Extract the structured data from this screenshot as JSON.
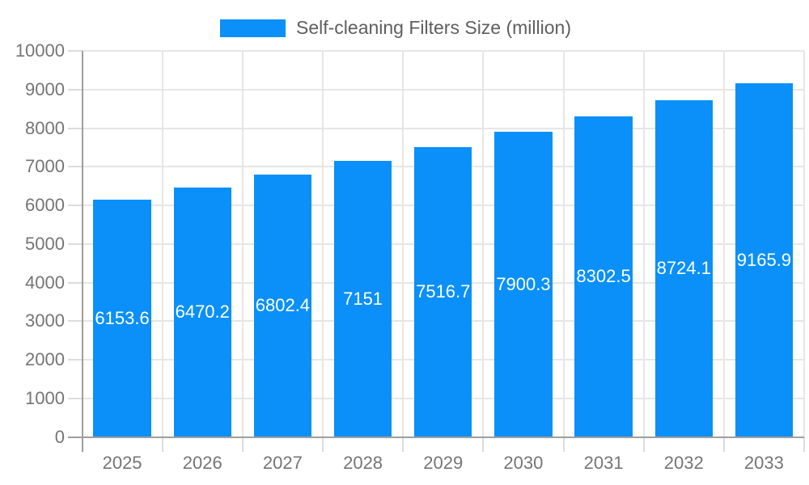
{
  "chart_data": {
    "type": "bar",
    "title": "Self-cleaning Filters Size (million)",
    "categories": [
      "2025",
      "2026",
      "2027",
      "2028",
      "2029",
      "2030",
      "2031",
      "2032",
      "2033"
    ],
    "values": [
      6153.6,
      6470.2,
      6802.4,
      7151,
      7516.7,
      7900.3,
      8302.5,
      8724.1,
      9165.9
    ],
    "xlabel": "",
    "ylabel": "",
    "ylim": [
      0,
      10000
    ],
    "yticks": [
      0,
      1000,
      2000,
      3000,
      4000,
      5000,
      6000,
      7000,
      8000,
      9000,
      10000
    ],
    "grid": true,
    "legend_position": "top-center",
    "value_label_position": "inside-middle",
    "colors": {
      "bar": "#0a90f8",
      "grid": "#e6e6e6",
      "axis": "#9e9e9e",
      "tick": "#dcdcdc",
      "axis_label": "#757575",
      "legend_text": "#5e5e5e",
      "value_label": "#ffffff",
      "background": "#ffffff"
    }
  }
}
